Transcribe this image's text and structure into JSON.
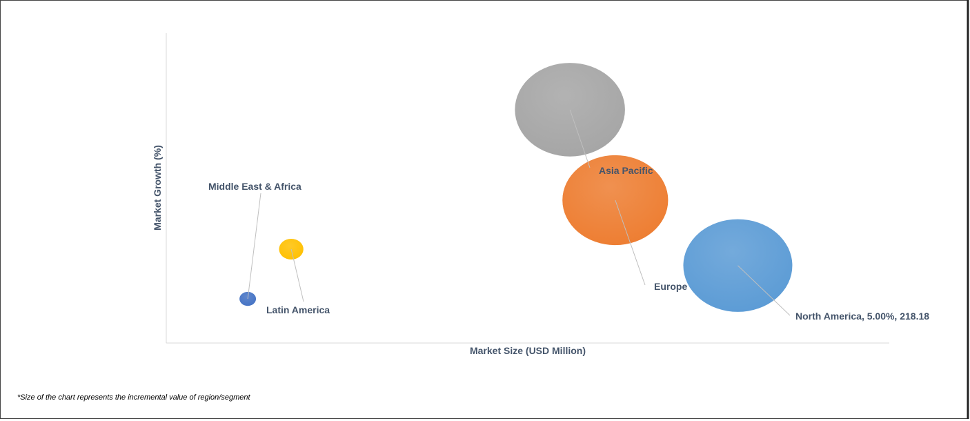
{
  "chart_data": {
    "type": "bubble",
    "x_label": "Market Size (USD Million)",
    "y_label": "Market Growth (%)",
    "note": "*Size of the chart represents the incremental value of region/segment",
    "xlim": [
      0,
      276
    ],
    "ylim": [
      0,
      20
    ],
    "points": [
      {
        "label": "Asia Pacific",
        "x": 154.1,
        "y": 15.06,
        "size": 102,
        "color": "#a5a5a5"
      },
      {
        "label": "Europe",
        "x": 171.4,
        "y": 9.22,
        "size": 94,
        "color": "#ed7d31"
      },
      {
        "label": "North America, 5.00%, 218.18",
        "x": 218.18,
        "y": 5.0,
        "size": 100,
        "color": "#5b9bd5"
      },
      {
        "label": "Latin America",
        "x": 47.7,
        "y": 6.06,
        "size": 5,
        "color": "#ffc000"
      },
      {
        "label": "Middle East & Africa",
        "x": 31.1,
        "y": 2.85,
        "size": 2.3,
        "color": "#4472c4"
      }
    ]
  }
}
